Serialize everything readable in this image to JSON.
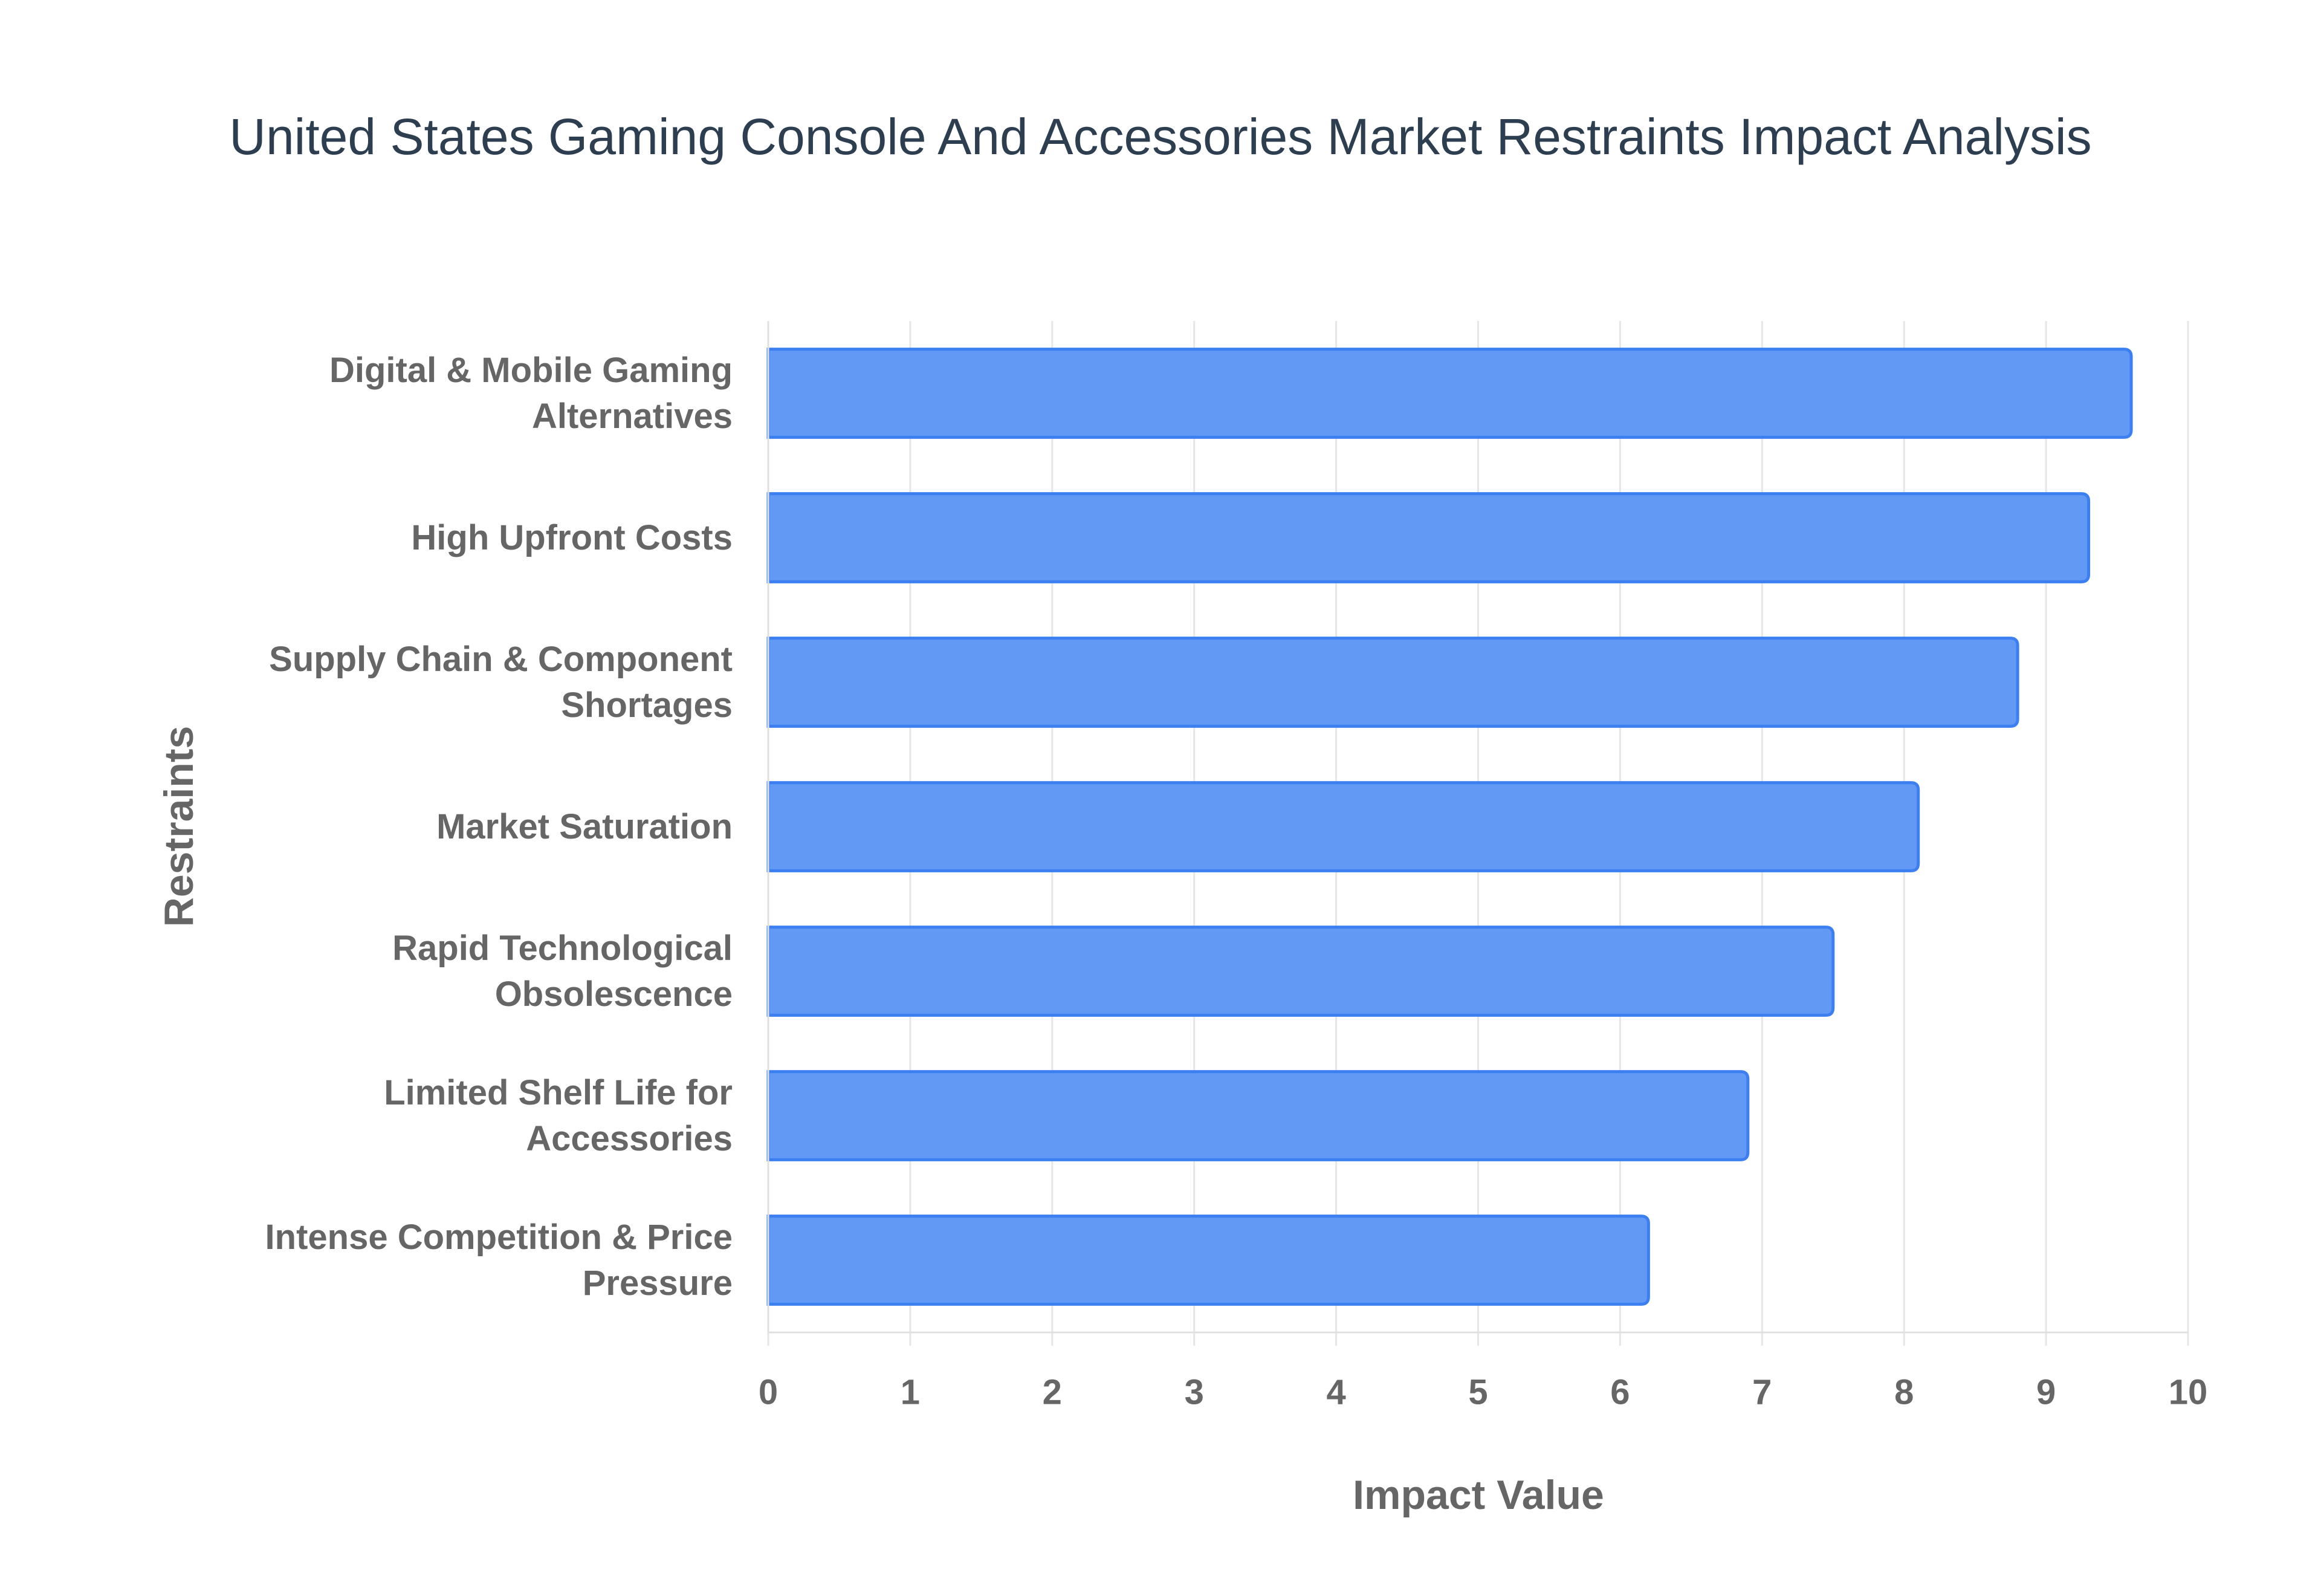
{
  "chart_data": {
    "type": "bar",
    "orientation": "horizontal",
    "title": "United States Gaming Console And Accessories Market Restraints Impact Analysis",
    "x_label": "Impact Value",
    "y_label": "Restraints",
    "categories": [
      "Digital & Mobile Gaming Alternatives",
      "High Upfront Costs",
      "Supply Chain & Component Shortages",
      "Market Saturation",
      "Rapid Technological Obsolescence",
      "Limited Shelf Life for Accessories",
      "Intense Competition & Price Pressure"
    ],
    "values": [
      9.6,
      9.3,
      8.8,
      8.1,
      7.5,
      6.9,
      6.2
    ],
    "color": "#6199f5",
    "border_color": "#3b7ff0",
    "xlim": [
      0,
      10
    ],
    "xticks": [
      0,
      1,
      2,
      3,
      4,
      5,
      6,
      7,
      8,
      9,
      10
    ],
    "grid": true
  }
}
